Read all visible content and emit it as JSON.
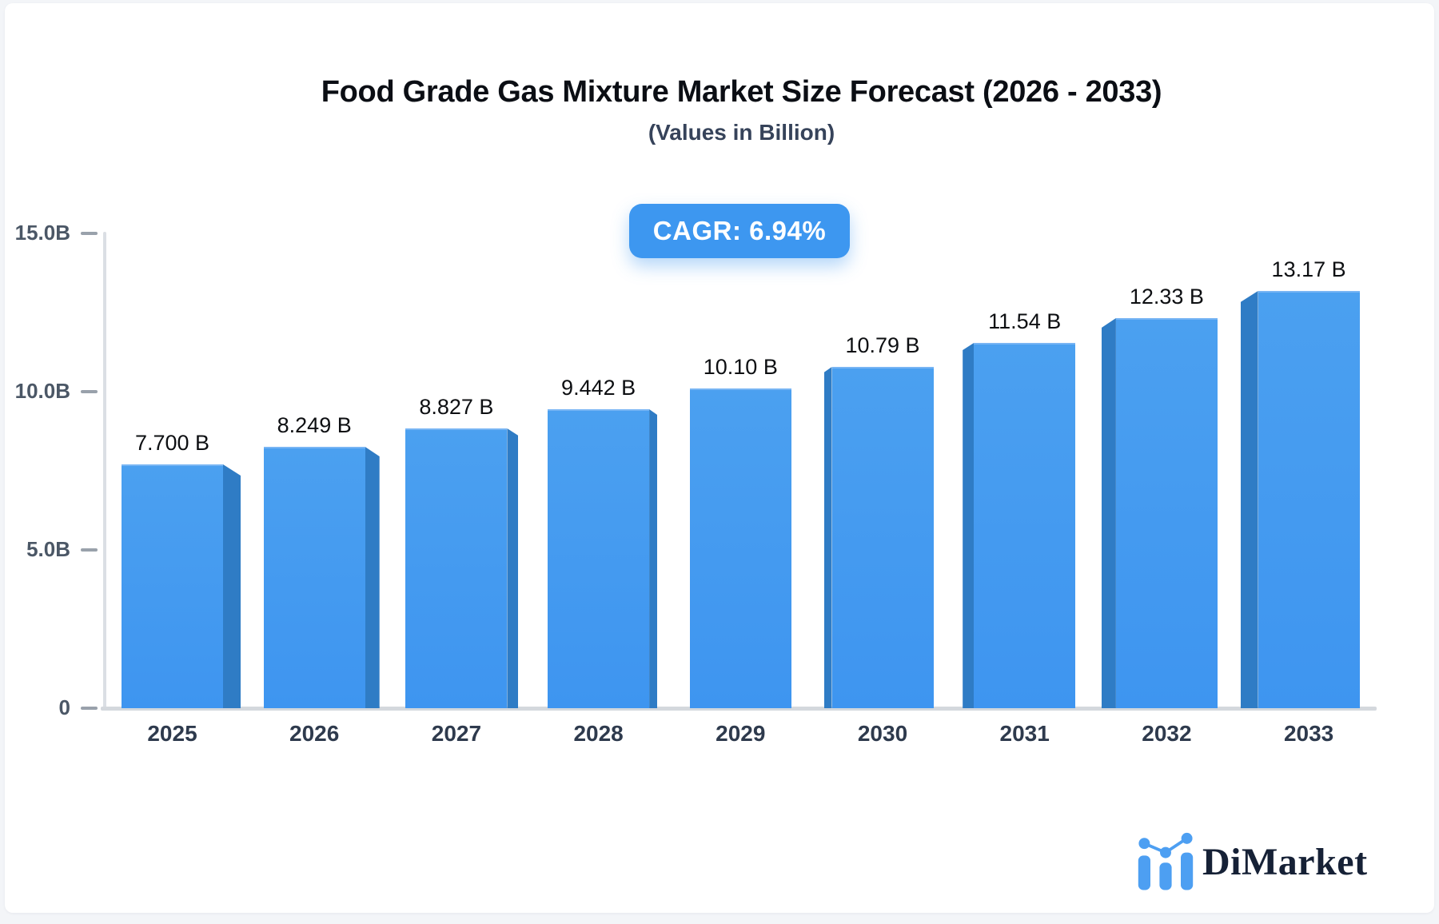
{
  "title": "Food Grade Gas Mixture Market Size Forecast (2026 - 2033)",
  "subtitle": "(Values in Billion)",
  "badge": {
    "label": "CAGR: 6.94%"
  },
  "watermark": {
    "brand": "DiMarket",
    "icon": "dimarket-bar-chart-icon"
  },
  "chart_data": {
    "type": "bar",
    "title": "Food Grade Gas Mixture Market Size Forecast (2026 - 2033)",
    "subtitle": "(Values in Billion)",
    "cagr": "6.94%",
    "categories": [
      "2025",
      "2026",
      "2027",
      "2028",
      "2029",
      "2030",
      "2031",
      "2032",
      "2033"
    ],
    "values": [
      7.7,
      8.249,
      8.827,
      9.442,
      10.1,
      10.79,
      11.54,
      12.33,
      13.17
    ],
    "bar_labels": [
      "7.700 B",
      "8.249 B",
      "8.827 B",
      "9.442 B",
      "10.10 B",
      "10.79 B",
      "11.54 B",
      "12.33 B",
      "13.17 B"
    ],
    "xlabel": "",
    "ylabel": "",
    "ylim": [
      0,
      15
    ],
    "y_ticks": [
      {
        "label": "15.0B",
        "value": 15
      },
      {
        "label": "10.0B",
        "value": 10
      },
      {
        "label": "5.0B",
        "value": 5
      },
      {
        "label": "0",
        "value": 0
      }
    ],
    "grid": false,
    "legend": null,
    "bar_style": "3d-beveled, vanishing point at chart center",
    "colors": {
      "bar_face": "#3e95f0",
      "bar_face_light": "#4ba0f0",
      "bar_side": "#2f7cc5",
      "badge_bg": "#3d97f0",
      "title_color": "#0b0e14",
      "subtitle_color": "#36435a",
      "axis_label_color": "#4b5766",
      "x_label_color": "#2e3a4d",
      "logo_navy": "#162136",
      "logo_blue": "#4d9ff2"
    }
  }
}
